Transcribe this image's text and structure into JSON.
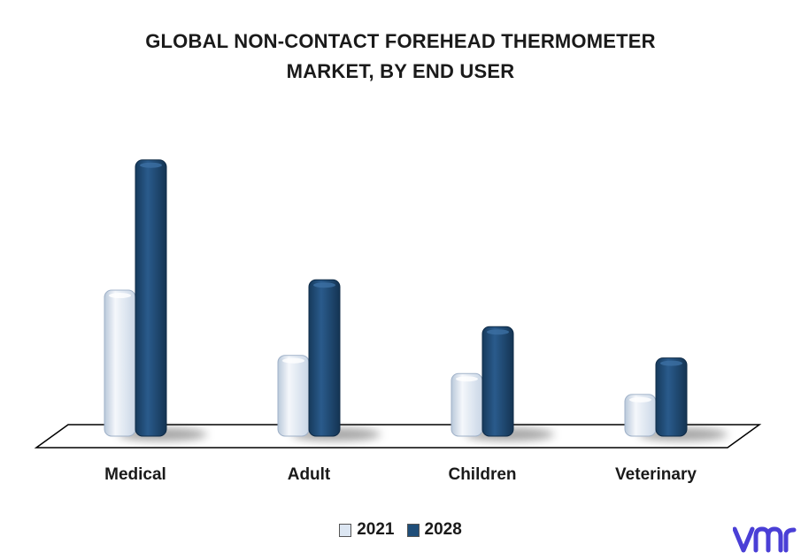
{
  "chart_data": {
    "type": "bar",
    "title_lines": [
      "GLOBAL NON-CONTACT FOREHEAD THERMOMETER",
      "MARKET, BY END USER"
    ],
    "categories": [
      "Medical",
      "Adult",
      "Children",
      "Veterinary"
    ],
    "series": [
      {
        "name": "2021",
        "values": [
          168,
          93,
          72,
          48
        ],
        "color": "#dce6f2"
      },
      {
        "name": "2028",
        "values": [
          318,
          180,
          126,
          90
        ],
        "color": "#1f4e79"
      }
    ],
    "ylim": [
      0,
      330
    ],
    "grid": false,
    "legend_position": "bottom"
  },
  "brand": {
    "logo_name": "vmr-logo",
    "color": "#4a3fd6"
  }
}
